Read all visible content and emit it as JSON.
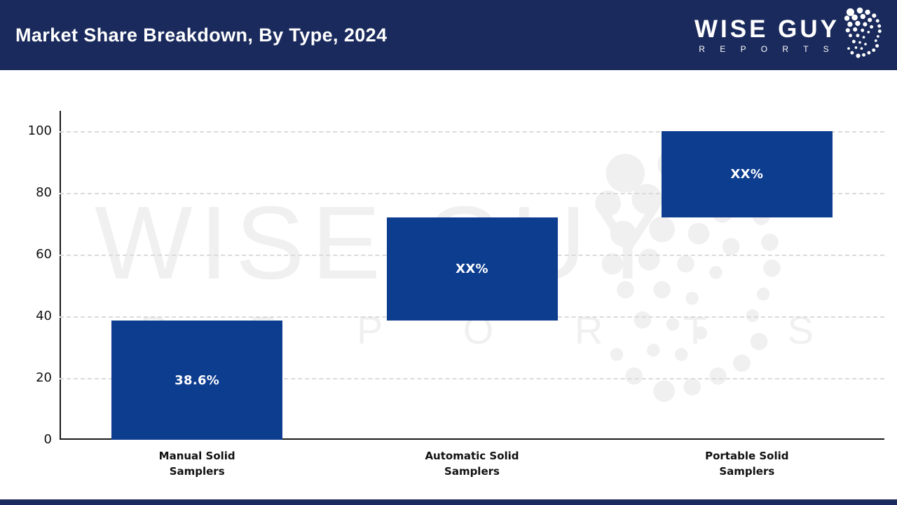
{
  "header": {
    "title": "Market Share Breakdown, By Type, 2024",
    "bg_color": "#1a2a5c",
    "logo": {
      "line1": "WISE GUY",
      "line2": "R E P O R T S"
    }
  },
  "watermark": {
    "line1": "WISE GUY",
    "line2": "R E P O R T S"
  },
  "chart_data": {
    "type": "bar",
    "subtype": "floating-waterfall",
    "title": "Market Share Breakdown, By Type, 2024",
    "categories": [
      {
        "line1": "Manual Solid",
        "line2": "Samplers"
      },
      {
        "line1": "Automatic Solid",
        "line2": "Samplers"
      },
      {
        "line1": "Portable Solid",
        "line2": "Samplers"
      }
    ],
    "segments": [
      {
        "category": "Manual Solid Samplers",
        "start": 0,
        "end": 38.6,
        "label": "38.6%"
      },
      {
        "category": "Automatic Solid Samplers",
        "start": 38.6,
        "end": 72,
        "label": "XX%"
      },
      {
        "category": "Portable Solid Samplers",
        "start": 72,
        "end": 100,
        "label": "XX%"
      }
    ],
    "xlabel": "",
    "ylabel": "",
    "ylim": [
      0,
      100
    ],
    "yticks": [
      0,
      20,
      40,
      60,
      80,
      100
    ],
    "bar_color": "#0d3d8f",
    "bar_label_color": "#ffffff",
    "grid": "horizontal-dashed",
    "legend": "none"
  }
}
